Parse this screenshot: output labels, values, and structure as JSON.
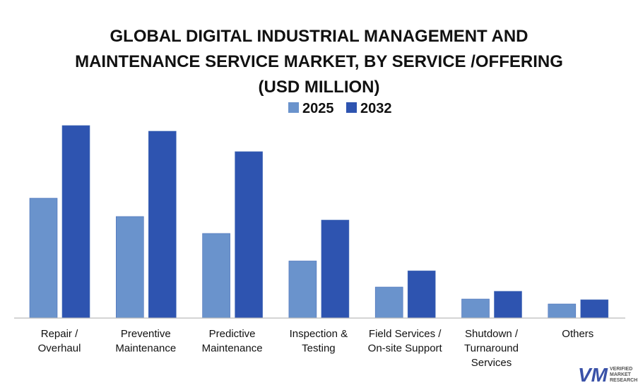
{
  "chart_data": {
    "type": "bar",
    "title": "GLOBAL DIGITAL INDUSTRIAL MANAGEMENT AND\nMAINTENANCE SERVICE MARKET, BY SERVICE /OFFERING\n(USD MILLION)",
    "categories": [
      "Repair /\nOverhaul",
      "Preventive\nMaintenance",
      "Predictive\nMaintenance",
      "Inspection &\nTesting",
      "Field Services /\nOn-site Support",
      "Shutdown /\nTurnaround\nServices",
      "Others"
    ],
    "series": [
      {
        "name": "2025",
        "color": "#6a93cc",
        "values": [
          170,
          144,
          120,
          81,
          44,
          27,
          20
        ]
      },
      {
        "name": "2032",
        "color": "#2e54b0",
        "values": [
          273,
          265,
          236,
          139,
          67,
          38,
          26
        ]
      }
    ],
    "xlabel": "",
    "ylabel": "",
    "ylim": [
      0,
      280
    ],
    "grid": false,
    "legend_position": "top-center",
    "note_values": "relative estimates; no y-axis printed"
  },
  "logo": {
    "mark": "VM",
    "text": "VERIFIED\nMARKET\nRESEARCH"
  }
}
